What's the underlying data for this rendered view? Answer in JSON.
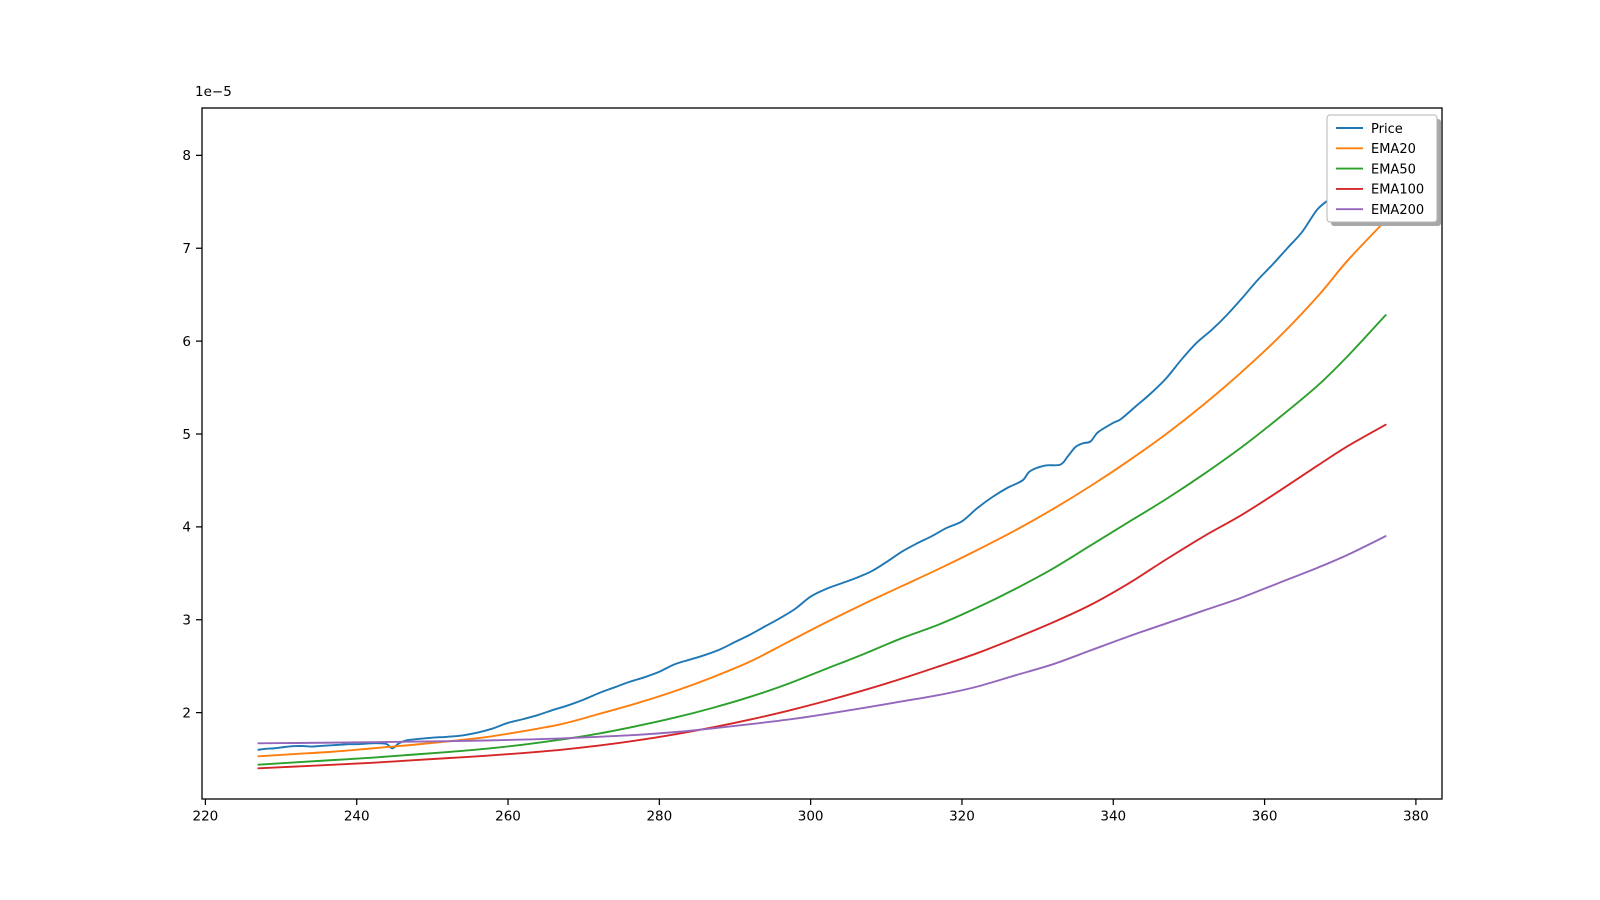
{
  "figure": {
    "background": "#ffffff",
    "axes_edge_color": "#000000",
    "tick_label_color": "#000000"
  },
  "chart_data": {
    "type": "line",
    "title": "",
    "xlabel": "",
    "ylabel": "",
    "y_offset_label": "1e−5",
    "y_scale_factor": 1e-05,
    "grid": false,
    "xlim": [
      219.55,
      383.45
    ],
    "ylim": [
      1.07,
      8.51
    ],
    "xticks": [
      220,
      240,
      260,
      280,
      300,
      320,
      340,
      360,
      380
    ],
    "yticks": [
      2,
      3,
      4,
      5,
      6,
      7,
      8
    ],
    "legend": {
      "position": "upper right",
      "face_color": "#ffffff",
      "edge_color": "#b4b4b4",
      "shadow": true,
      "entries": [
        {
          "label": "Price",
          "color": "#1f77b4"
        },
        {
          "label": "EMA20",
          "color": "#ff7f0e"
        },
        {
          "label": "EMA50",
          "color": "#2ca02c"
        },
        {
          "label": "EMA100",
          "color": "#d62728"
        },
        {
          "label": "EMA200",
          "color": "#9467bd"
        }
      ]
    },
    "series": [
      {
        "name": "Price",
        "color": "#1f77b4",
        "points": [
          [
            227,
            1.6
          ],
          [
            228,
            1.61
          ],
          [
            229,
            1.615
          ],
          [
            230,
            1.625
          ],
          [
            231,
            1.635
          ],
          [
            232,
            1.64
          ],
          [
            233,
            1.64
          ],
          [
            234,
            1.635
          ],
          [
            235,
            1.64
          ],
          [
            236,
            1.645
          ],
          [
            237,
            1.65
          ],
          [
            238,
            1.655
          ],
          [
            239,
            1.66
          ],
          [
            240,
            1.66
          ],
          [
            241,
            1.665
          ],
          [
            242,
            1.67
          ],
          [
            243,
            1.67
          ],
          [
            244,
            1.66
          ],
          [
            244.7,
            1.615
          ],
          [
            245.5,
            1.665
          ],
          [
            246.5,
            1.7
          ],
          [
            248,
            1.715
          ],
          [
            250,
            1.73
          ],
          [
            252,
            1.74
          ],
          [
            254,
            1.755
          ],
          [
            256,
            1.785
          ],
          [
            258,
            1.83
          ],
          [
            260,
            1.89
          ],
          [
            262,
            1.93
          ],
          [
            264,
            1.975
          ],
          [
            266,
            2.03
          ],
          [
            268,
            2.08
          ],
          [
            270,
            2.14
          ],
          [
            272,
            2.21
          ],
          [
            274,
            2.27
          ],
          [
            276,
            2.33
          ],
          [
            278,
            2.38
          ],
          [
            280,
            2.44
          ],
          [
            282,
            2.52
          ],
          [
            284,
            2.57
          ],
          [
            286,
            2.62
          ],
          [
            288,
            2.68
          ],
          [
            290,
            2.76
          ],
          [
            292,
            2.84
          ],
          [
            294,
            2.93
          ],
          [
            296,
            3.02
          ],
          [
            298,
            3.12
          ],
          [
            300,
            3.25
          ],
          [
            302,
            3.33
          ],
          [
            304,
            3.39
          ],
          [
            306,
            3.45
          ],
          [
            308,
            3.52
          ],
          [
            310,
            3.62
          ],
          [
            312,
            3.73
          ],
          [
            314,
            3.82
          ],
          [
            316,
            3.9
          ],
          [
            318,
            3.99
          ],
          [
            320,
            4.06
          ],
          [
            322,
            4.2
          ],
          [
            324,
            4.32
          ],
          [
            326,
            4.42
          ],
          [
            328,
            4.5
          ],
          [
            329,
            4.6
          ],
          [
            331,
            4.66
          ],
          [
            333,
            4.67
          ],
          [
            334,
            4.76
          ],
          [
            335,
            4.86
          ],
          [
            336,
            4.9
          ],
          [
            337,
            4.92
          ],
          [
            338,
            5.02
          ],
          [
            340,
            5.12
          ],
          [
            341,
            5.16
          ],
          [
            343,
            5.3
          ],
          [
            345,
            5.44
          ],
          [
            347,
            5.6
          ],
          [
            349,
            5.8
          ],
          [
            351,
            5.98
          ],
          [
            353,
            6.12
          ],
          [
            355,
            6.28
          ],
          [
            357,
            6.46
          ],
          [
            359,
            6.65
          ],
          [
            361,
            6.82
          ],
          [
            363,
            7.0
          ],
          [
            365,
            7.18
          ],
          [
            367,
            7.42
          ],
          [
            369,
            7.56
          ],
          [
            371,
            7.75
          ],
          [
            373,
            7.93
          ],
          [
            376,
            8.16
          ]
        ]
      },
      {
        "name": "EMA20",
        "color": "#ff7f0e",
        "points": [
          [
            227,
            1.53
          ],
          [
            232,
            1.555
          ],
          [
            237,
            1.58
          ],
          [
            242,
            1.615
          ],
          [
            247,
            1.65
          ],
          [
            252,
            1.69
          ],
          [
            257,
            1.735
          ],
          [
            262,
            1.8
          ],
          [
            267,
            1.875
          ],
          [
            272,
            1.985
          ],
          [
            277,
            2.1
          ],
          [
            282,
            2.23
          ],
          [
            287,
            2.38
          ],
          [
            292,
            2.55
          ],
          [
            297,
            2.76
          ],
          [
            302,
            2.97
          ],
          [
            307,
            3.17
          ],
          [
            312,
            3.36
          ],
          [
            317,
            3.55
          ],
          [
            322,
            3.75
          ],
          [
            327,
            3.96
          ],
          [
            332,
            4.19
          ],
          [
            337,
            4.44
          ],
          [
            342,
            4.71
          ],
          [
            347,
            5.0
          ],
          [
            352,
            5.32
          ],
          [
            357,
            5.67
          ],
          [
            362,
            6.05
          ],
          [
            367,
            6.48
          ],
          [
            371,
            6.87
          ],
          [
            376,
            7.3
          ]
        ]
      },
      {
        "name": "EMA50",
        "color": "#2ca02c",
        "points": [
          [
            227,
            1.44
          ],
          [
            232,
            1.465
          ],
          [
            237,
            1.49
          ],
          [
            242,
            1.515
          ],
          [
            247,
            1.545
          ],
          [
            252,
            1.575
          ],
          [
            257,
            1.61
          ],
          [
            262,
            1.655
          ],
          [
            267,
            1.71
          ],
          [
            272,
            1.775
          ],
          [
            277,
            1.855
          ],
          [
            282,
            1.945
          ],
          [
            287,
            2.05
          ],
          [
            292,
            2.17
          ],
          [
            297,
            2.31
          ],
          [
            302,
            2.47
          ],
          [
            307,
            2.63
          ],
          [
            312,
            2.8
          ],
          [
            317,
            2.95
          ],
          [
            322,
            3.13
          ],
          [
            327,
            3.33
          ],
          [
            332,
            3.55
          ],
          [
            337,
            3.8
          ],
          [
            342,
            4.05
          ],
          [
            347,
            4.3
          ],
          [
            352,
            4.57
          ],
          [
            357,
            4.86
          ],
          [
            362,
            5.18
          ],
          [
            367,
            5.52
          ],
          [
            371,
            5.84
          ],
          [
            376,
            6.28
          ]
        ]
      },
      {
        "name": "EMA100",
        "color": "#d62728",
        "points": [
          [
            227,
            1.4
          ],
          [
            232,
            1.42
          ],
          [
            237,
            1.44
          ],
          [
            242,
            1.46
          ],
          [
            247,
            1.485
          ],
          [
            252,
            1.51
          ],
          [
            257,
            1.535
          ],
          [
            262,
            1.565
          ],
          [
            267,
            1.6
          ],
          [
            272,
            1.645
          ],
          [
            277,
            1.7
          ],
          [
            282,
            1.765
          ],
          [
            287,
            1.84
          ],
          [
            292,
            1.925
          ],
          [
            297,
            2.02
          ],
          [
            302,
            2.125
          ],
          [
            307,
            2.24
          ],
          [
            312,
            2.365
          ],
          [
            317,
            2.5
          ],
          [
            322,
            2.64
          ],
          [
            327,
            2.8
          ],
          [
            332,
            2.97
          ],
          [
            337,
            3.16
          ],
          [
            342,
            3.39
          ],
          [
            347,
            3.65
          ],
          [
            352,
            3.9
          ],
          [
            357,
            4.13
          ],
          [
            362,
            4.39
          ],
          [
            367,
            4.66
          ],
          [
            371,
            4.87
          ],
          [
            376,
            5.1
          ]
        ]
      },
      {
        "name": "EMA200",
        "color": "#9467bd",
        "points": [
          [
            227,
            1.67
          ],
          [
            232,
            1.673
          ],
          [
            237,
            1.677
          ],
          [
            242,
            1.682
          ],
          [
            247,
            1.687
          ],
          [
            252,
            1.692
          ],
          [
            257,
            1.7
          ],
          [
            262,
            1.71
          ],
          [
            267,
            1.722
          ],
          [
            272,
            1.74
          ],
          [
            277,
            1.76
          ],
          [
            282,
            1.79
          ],
          [
            287,
            1.83
          ],
          [
            292,
            1.875
          ],
          [
            297,
            1.925
          ],
          [
            302,
            1.985
          ],
          [
            307,
            2.05
          ],
          [
            312,
            2.12
          ],
          [
            317,
            2.19
          ],
          [
            322,
            2.28
          ],
          [
            327,
            2.4
          ],
          [
            332,
            2.52
          ],
          [
            337,
            2.67
          ],
          [
            342,
            2.82
          ],
          [
            347,
            2.96
          ],
          [
            352,
            3.1
          ],
          [
            357,
            3.24
          ],
          [
            362,
            3.4
          ],
          [
            367,
            3.56
          ],
          [
            371,
            3.7
          ],
          [
            376,
            3.9
          ]
        ]
      }
    ]
  }
}
